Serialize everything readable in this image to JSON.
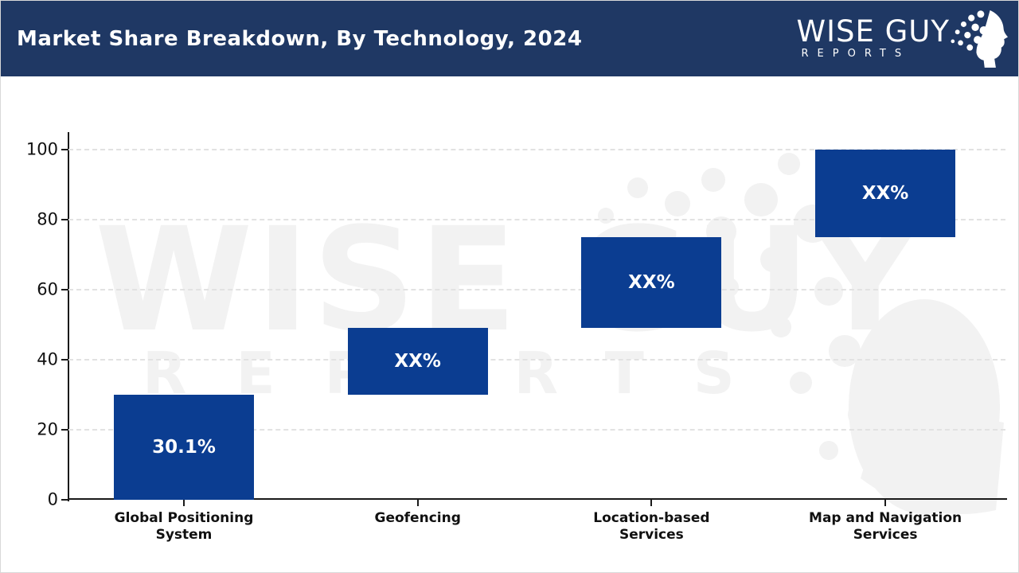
{
  "header": {
    "background_color": "#1F3864",
    "title": "Market Share Breakdown, By Technology, 2024",
    "logo": {
      "brand_line1": "WISE GUY",
      "brand_line2": "REPORTS"
    }
  },
  "watermark": {
    "line1": "WISE GUY",
    "line2": "REPORTS"
  },
  "chart_data": {
    "type": "bar",
    "subtype": "waterfall-segmented",
    "title": "Market Share Breakdown, By Technology, 2024",
    "xlabel": "",
    "ylabel": "",
    "ylim": [
      0,
      100
    ],
    "yticks": [
      0,
      20,
      40,
      60,
      80,
      100
    ],
    "grid": "horizontal-dashed",
    "legend": "none",
    "bar_color": "#0B3D91",
    "bar_label_color": "#FFFFFF",
    "categories": [
      "Global Positioning System",
      "Geofencing",
      "Location-based Services",
      "Map and Navigation Services"
    ],
    "segments": [
      {
        "category_lines": [
          "Global Positioning",
          "System"
        ],
        "start": 0,
        "end": 30.1,
        "value_label": "30.1%"
      },
      {
        "category_lines": [
          "Geofencing"
        ],
        "start": 30.1,
        "end": 49,
        "value_label": "XX%"
      },
      {
        "category_lines": [
          "Location-based",
          "Services"
        ],
        "start": 49,
        "end": 75,
        "value_label": "XX%"
      },
      {
        "category_lines": [
          "Map and Navigation",
          "Services"
        ],
        "start": 75,
        "end": 100,
        "value_label": "XX%"
      }
    ]
  }
}
